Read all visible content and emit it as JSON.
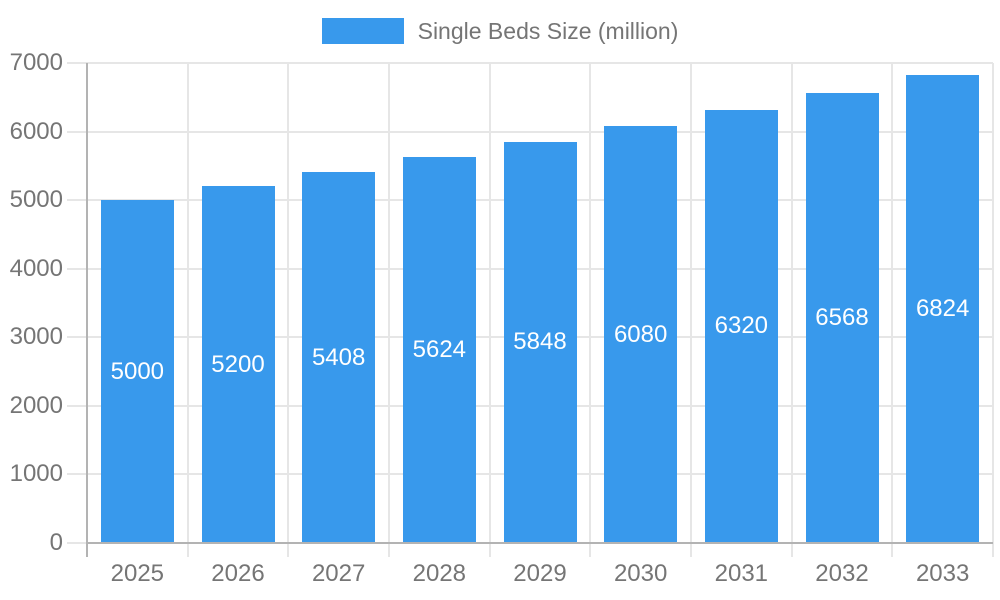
{
  "chart_data": {
    "type": "bar",
    "title": "Single Beds Size (million)",
    "legend": {
      "position": "top",
      "entries": [
        "Single Beds Size (million)"
      ]
    },
    "categories": [
      "2025",
      "2026",
      "2027",
      "2028",
      "2029",
      "2030",
      "2031",
      "2032",
      "2033"
    ],
    "series": [
      {
        "name": "Single Beds Size (million)",
        "values": [
          5000,
          5200,
          5408,
          5624,
          5848,
          6080,
          6320,
          6568,
          6824
        ]
      }
    ],
    "value_labels": [
      "5000",
      "5200",
      "5408",
      "5624",
      "5848",
      "6080",
      "6320",
      "6568",
      "6824"
    ],
    "xlabel": "",
    "ylabel": "",
    "ylim": [
      0,
      7000
    ],
    "yticks": [
      0,
      1000,
      2000,
      3000,
      4000,
      5000,
      6000,
      7000
    ],
    "grid": true,
    "colors": {
      "bar": "#3899EC",
      "value_label": "#ffffff",
      "axis_text": "#757575",
      "gridline": "#e6e6e6",
      "axis_line": "#b3b3b3",
      "background": "#ffffff"
    }
  }
}
